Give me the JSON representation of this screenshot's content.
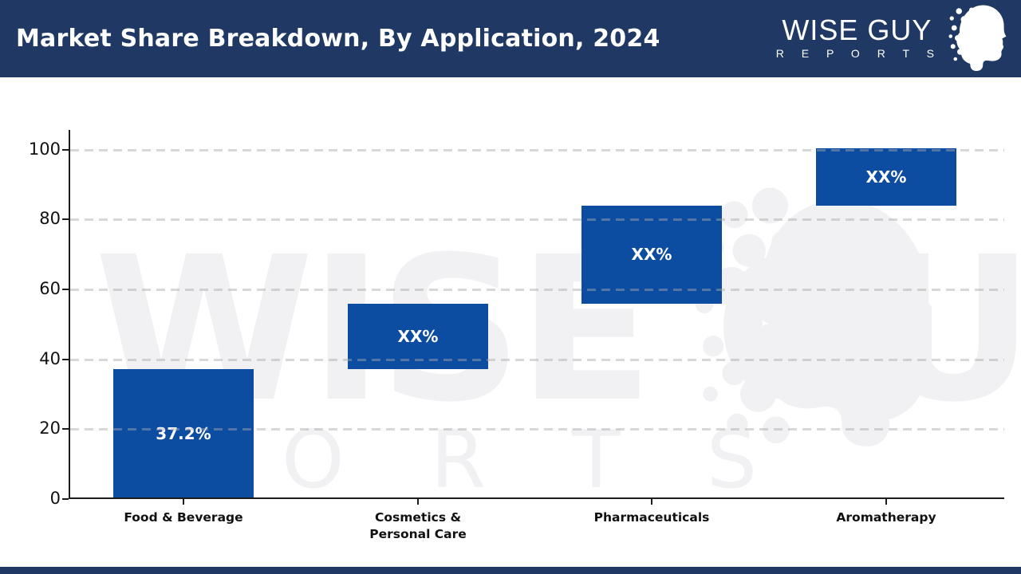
{
  "header": {
    "title": "Market Share Breakdown, By Application, 2024",
    "bg_color": "#1f3864",
    "logo": {
      "line1": "WISE GUY",
      "line2": "R E P O R T S"
    }
  },
  "watermark": {
    "line1": "WISE GUY",
    "line2": "P O R T S"
  },
  "chart_data": {
    "type": "bar",
    "variant": "waterfall",
    "title": "Market Share Breakdown, By Application, 2024",
    "categories": [
      "Food & Beverage",
      "Cosmetics &\nPersonal Care",
      "Pharmaceuticals",
      "Aromatherapy"
    ],
    "bars": [
      {
        "category": "Food & Beverage",
        "start": 0,
        "end": 37.2,
        "label": "37.2%"
      },
      {
        "category": "Cosmetics & Personal Care",
        "start": 37.2,
        "end": 55.9,
        "label": "XX%"
      },
      {
        "category": "Pharmaceuticals",
        "start": 55.9,
        "end": 84.0,
        "label": "XX%"
      },
      {
        "category": "Aromatherapy",
        "start": 84.0,
        "end": 100.3,
        "label": "XX%"
      }
    ],
    "xlabel": "",
    "ylabel": "",
    "ylim": [
      0,
      100
    ],
    "yticks": [
      0,
      20,
      40,
      60,
      80,
      100
    ],
    "grid": "horizontal-dashed",
    "legend": "none",
    "bar_color": "#0d4da1",
    "bar_label_color": "#ffffff"
  },
  "colors": {
    "header_bg": "#1f3864",
    "footer_bg": "#1f3864",
    "bar_blue": "#0d4da1",
    "watermark_gray": "#f1f1f3",
    "axis_black": "#1c1c1c"
  }
}
